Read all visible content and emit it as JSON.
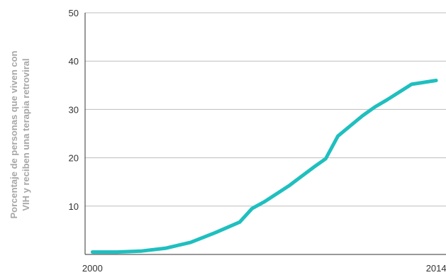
{
  "chart_data": {
    "type": "line",
    "title": "",
    "xlabel": "",
    "ylabel_lines": [
      "Porcentaje de personas que viven con",
      "VIH y reciben una terapia retroviral"
    ],
    "x_tick_labels": [
      "2000",
      "2014"
    ],
    "y_tick_labels": [
      "10",
      "20",
      "30",
      "40",
      "50"
    ],
    "ylim": [
      0,
      50
    ],
    "xlim": [
      1999.7,
      2014.4
    ],
    "grid": "horizontal",
    "series": [
      {
        "color": "#1fbfbf",
        "x": [
          2000,
          2001,
          2002,
          2003,
          2004,
          2005,
          2006,
          2006.5,
          2007,
          2008,
          2009,
          2009.5,
          2010,
          2011,
          2011.5,
          2012,
          2013,
          2014
        ],
        "y": [
          0.5,
          0.5,
          0.7,
          1.3,
          2.5,
          4.5,
          6.7,
          9.5,
          10.9,
          14.2,
          18.0,
          19.8,
          24.5,
          28.7,
          30.5,
          32.0,
          35.2,
          36.0
        ]
      }
    ]
  }
}
